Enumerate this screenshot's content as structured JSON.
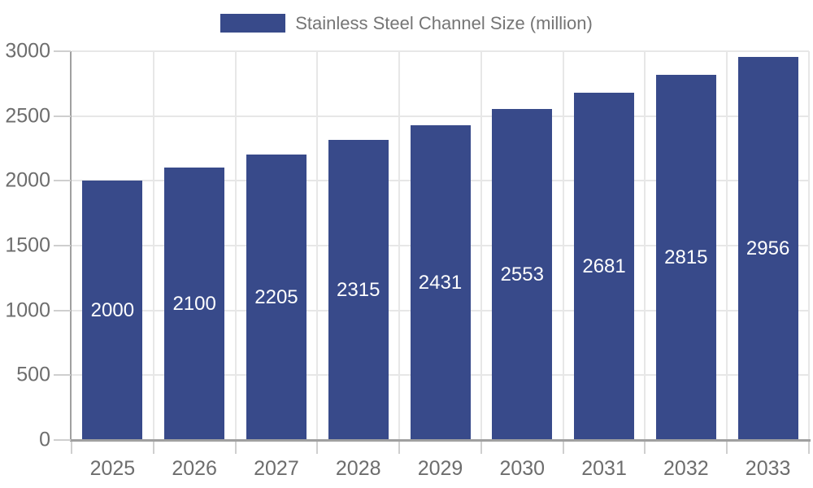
{
  "chart_data": {
    "type": "bar",
    "title": "Stainless Steel Channel Size (million)",
    "legend_entries": [
      "Stainless Steel Channel Size (million)"
    ],
    "legend_position": "top",
    "categories": [
      "2025",
      "2026",
      "2027",
      "2028",
      "2029",
      "2030",
      "2031",
      "2032",
      "2033"
    ],
    "values": [
      2000,
      2100,
      2205,
      2315,
      2431,
      2553,
      2681,
      2815,
      2956
    ],
    "xlabel": "",
    "ylabel": "",
    "ylim": [
      0,
      3000
    ],
    "yticks": [
      0,
      500,
      1000,
      1500,
      2000,
      2500,
      3000
    ],
    "grid": true,
    "colors": {
      "bar": "#384a8a",
      "bar_value_label": "#ffffff",
      "gridline": "#e7e7e7",
      "axis_line": "#a0a0a0",
      "tick_mark": "#cfcfcf",
      "axis_text": "#6d6d6d",
      "legend_text": "#757575",
      "background": "#ffffff"
    }
  }
}
